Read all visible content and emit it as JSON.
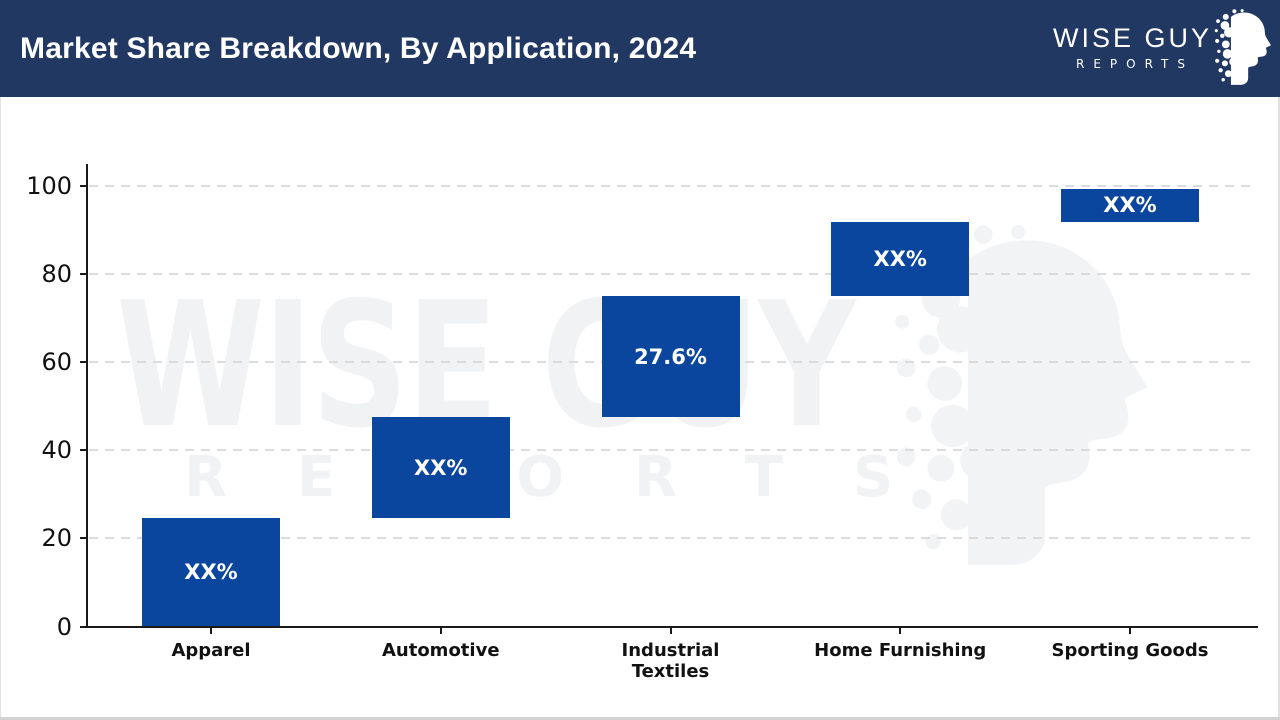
{
  "header": {
    "title": "Market Share Breakdown, By Application, 2024",
    "logo": {
      "line1": "WISE GUY",
      "line2": "REPORTS"
    }
  },
  "watermark": {
    "line1": "WISE GUY",
    "line2": "REPORTS"
  },
  "chart_data": {
    "type": "bar",
    "subtype": "floating-segment-waterfall",
    "title": "Market Share Breakdown, By Application, 2024",
    "xlabel": "",
    "ylabel": "",
    "categories": [
      "Apparel",
      "Automotive",
      "Industrial\nTextiles",
      "Home Furnishing",
      "Sporting Goods"
    ],
    "segments": [
      {
        "category": "Apparel",
        "start": 0,
        "end": 24.7,
        "value": 24.7,
        "label": "XX%"
      },
      {
        "category": "Automotive",
        "start": 24.7,
        "end": 47.4,
        "value": 22.7,
        "label": "XX%"
      },
      {
        "category": "Industrial\nTextiles",
        "start": 47.4,
        "end": 75.0,
        "value": 27.6,
        "label": "27.6%"
      },
      {
        "category": "Home Furnishing",
        "start": 75.0,
        "end": 91.8,
        "value": 16.8,
        "label": "XX%"
      },
      {
        "category": "Sporting Goods",
        "start": 91.8,
        "end": 99.3,
        "value": 7.5,
        "label": "XX%"
      }
    ],
    "yticks": [
      0,
      20,
      40,
      60,
      80,
      100
    ],
    "ylim": [
      0,
      104
    ],
    "grid": "horizontal-dashed",
    "legend": "none",
    "colors": {
      "bar": "#0a459e",
      "bar_label": "#ffffff",
      "grid": "#dcdcdc",
      "axis": "#1a1a1a",
      "header_bg": "#213863",
      "watermark": "#f1f2f4"
    }
  }
}
